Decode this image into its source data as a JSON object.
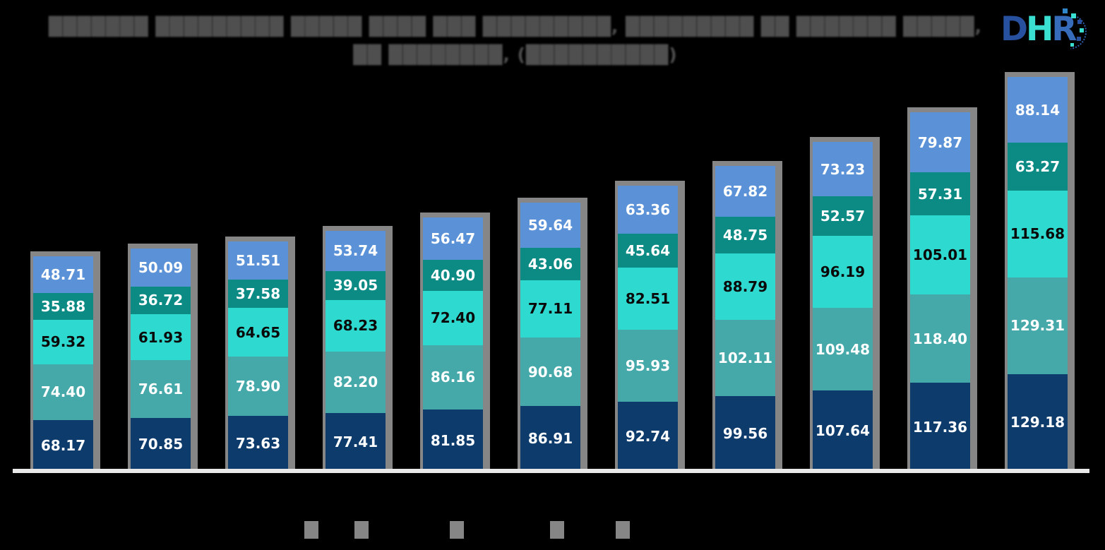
{
  "title": {
    "line1": "███████ █████████ █████ ████ ███ █████████, █████████ ██ ███████ █████,",
    "line2": "██ ████████, (██████████)"
  },
  "logo": {
    "text": "DHR",
    "letters": [
      {
        "char": "D",
        "color": "#27509f"
      },
      {
        "char": "H",
        "color": "#3adfd2"
      },
      {
        "char": "R",
        "color": "#366cba"
      }
    ],
    "dot_colors": [
      "#2f86c8",
      "#3adfd2",
      "#27509f",
      "#3adfd2",
      "#27509f",
      "#3adfd2"
    ]
  },
  "chart_data": {
    "type": "bar",
    "stacked": true,
    "orientation": "vertical",
    "num_bars": 11,
    "x_axis_labels_visible": false,
    "legend_position": "bottom",
    "legend_labels_visible": false,
    "background_color": "#000000",
    "axis_line_color": "#e9e9e9",
    "bar_shadow_color": "#868686",
    "title_color": "#4f4f4f",
    "value_label_decimals": 2,
    "series": [
      {
        "label": "",
        "color": "#0d3b6c",
        "text_color": "#ffffff",
        "values": [
          68.17,
          70.85,
          73.63,
          77.41,
          81.85,
          86.91,
          92.74,
          99.56,
          107.64,
          117.36,
          129.18
        ]
      },
      {
        "label": "",
        "color": "#45a8a9",
        "text_color": "#ffffff",
        "values": [
          74.4,
          76.61,
          78.9,
          82.2,
          86.16,
          90.68,
          95.93,
          102.11,
          109.48,
          118.4,
          129.31
        ]
      },
      {
        "label": "",
        "color": "#2edacf",
        "text_color": "#0a0a0a",
        "values": [
          59.32,
          61.93,
          64.65,
          68.23,
          72.4,
          77.11,
          82.51,
          88.79,
          96.19,
          105.01,
          115.68
        ]
      },
      {
        "label": "",
        "color": "#0c8b85",
        "text_color": "#ffffff",
        "values": [
          35.88,
          36.72,
          37.58,
          39.05,
          40.9,
          43.06,
          45.64,
          48.75,
          52.57,
          57.31,
          63.27
        ]
      },
      {
        "label": "",
        "color": "#5b92d7",
        "text_color": "#ffffff",
        "values": [
          48.71,
          50.09,
          51.51,
          53.74,
          56.47,
          59.64,
          63.36,
          67.82,
          73.23,
          79.87,
          88.14
        ]
      }
    ]
  }
}
